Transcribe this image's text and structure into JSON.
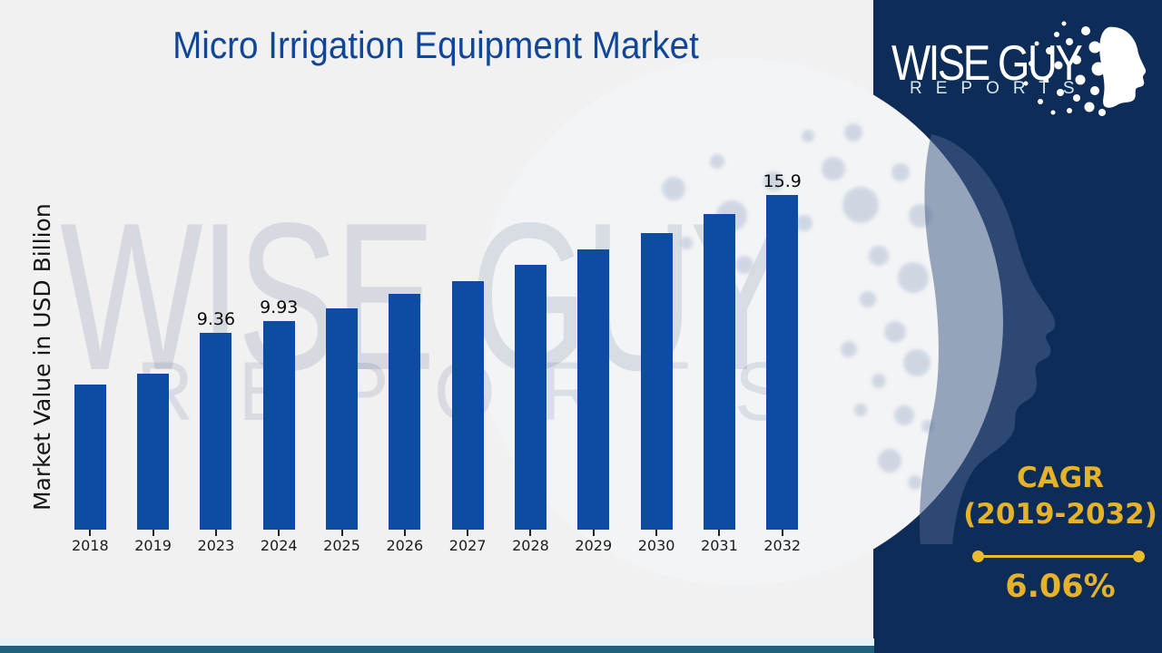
{
  "page": {
    "title": "Micro Irrigation Equipment Market"
  },
  "chart_data": {
    "type": "bar",
    "title": "Micro Irrigation Equipment Market",
    "xlabel": "",
    "ylabel": "Market Value in USD Billion",
    "units": "USD Billion",
    "categories": [
      "2018",
      "2019",
      "2023",
      "2024",
      "2025",
      "2026",
      "2027",
      "2028",
      "2029",
      "2030",
      "2031",
      "2032"
    ],
    "values": [
      6.9,
      7.42,
      9.36,
      9.93,
      10.5,
      11.2,
      11.8,
      12.6,
      13.3,
      14.1,
      15.0,
      15.9
    ],
    "bar_labels": [
      "",
      "",
      "9.36",
      "9.93",
      "",
      "",
      "",
      "",
      "",
      "",
      "",
      "15.9"
    ],
    "ylim": [
      0,
      16.5
    ],
    "grid": false,
    "legend": false,
    "bar_color": "#0c4da2"
  },
  "watermark": {
    "line1": "WISE GUY",
    "line2": "REPORTS"
  },
  "brand": {
    "logo_top": "WISE GUY",
    "logo_bottom": "REPORTS",
    "cagr_label": "CAGR",
    "cagr_range": "(2019-2032)",
    "cagr_value": "6.06%",
    "panel_color": "#0d2c58",
    "accent_gold": "#e5b22a",
    "title_blue": "#0f4699",
    "bar_blue": "#0c4da2",
    "bottom_stripe_teal": "#20607c"
  }
}
